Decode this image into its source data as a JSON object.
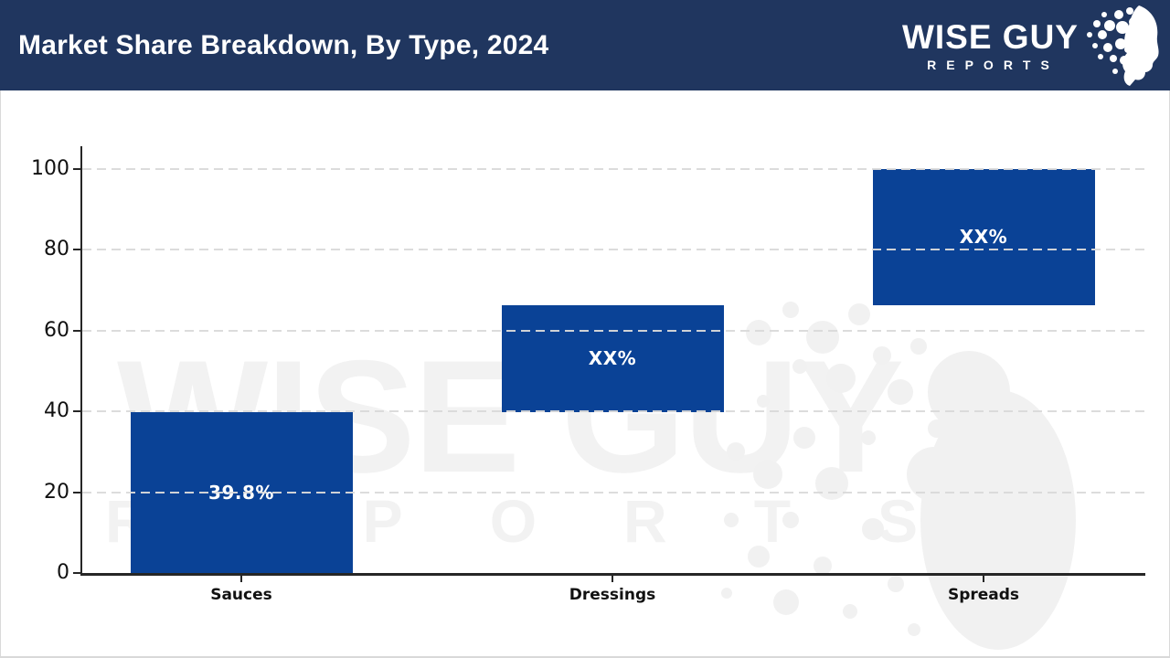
{
  "header": {
    "title": "Market Share Breakdown, By Type, 2024"
  },
  "logo": {
    "name_line": "WISE GUY",
    "reports_line": "REPORTS"
  },
  "watermark": {
    "line1": "WISE GUY",
    "line2": "REPORTS"
  },
  "chart_data": {
    "type": "bar",
    "subtype": "waterfall",
    "title": "Market Share Breakdown, By Type, 2024",
    "categories": [
      "Sauces",
      "Dressings",
      "Spreads"
    ],
    "segments": [
      {
        "category": "Sauces",
        "start": 0,
        "end": 39.8,
        "label": "39.8%"
      },
      {
        "category": "Dressings",
        "start": 39.8,
        "end": 66.4,
        "label": "XX%"
      },
      {
        "category": "Spreads",
        "start": 66.4,
        "end": 100,
        "label": "XX%"
      }
    ],
    "ylim": [
      0,
      100
    ],
    "yticks": [
      0,
      20,
      40,
      60,
      80,
      100
    ],
    "xlabel": "",
    "ylabel": "",
    "grid": "dashed-horizontal",
    "legend": "none",
    "bar_color": "#0a4296",
    "value_label_color": "#ffffff"
  },
  "colors": {
    "header_bg": "#20365f",
    "bar": "#0a4296",
    "axis": "#262626",
    "grid": "#d9d9d9",
    "watermark": "#f2f2f2"
  }
}
